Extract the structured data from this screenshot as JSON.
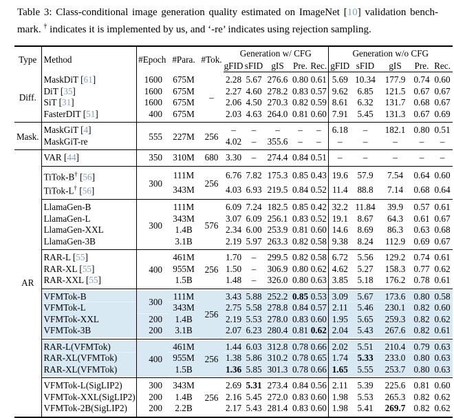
{
  "colors": {
    "highlight": "#d8e9f3",
    "cite": "#7f9ec9"
  },
  "caption": {
    "part1": "Table 3: Class-conditional image generation quality estimated on ImageNet [",
    "cite": "10",
    "part2": "] validation bench-",
    "part3": "mark. ",
    "dagger": "†",
    "part4": " indicates it is implemented by us, and ‘-re’ indicates using rejection sampling."
  },
  "table": {
    "symbols": {
      "dagger": "†"
    },
    "header": {
      "type": "Type",
      "method": "Method",
      "epoch": "#Epoch",
      "para": "#Para.",
      "tok": "#Tok.",
      "cfg_group": "Generation w/ CFG",
      "nocfg_group": "Generation w/o CFG",
      "metrics": [
        "gFID",
        "sFID",
        "gIS",
        "Pre.",
        "Rec."
      ]
    },
    "groups": [
      {
        "type": "Diff.",
        "rows": [
          {
            "method": {
              "name": "MaskDiT",
              "cite": "61"
            },
            "epoch": "1600",
            "para": "675M",
            "tok": {
              "v": "–",
              "span": 4
            },
            "cfg": [
              "2.28",
              "5.67",
              "276.6",
              "0.80",
              "0.61"
            ],
            "nocfg": [
              "5.69",
              "10.34",
              "177.9",
              "0.74",
              "0.60"
            ]
          },
          {
            "method": {
              "name": "DiT",
              "cite": "35"
            },
            "epoch": "1600",
            "para": "675M",
            "cfg": [
              "2.27",
              "4.60",
              "278.2",
              "0.83",
              "0.57"
            ],
            "nocfg": [
              "9.62",
              "6.85",
              "121.5",
              "0.67",
              "0.67"
            ]
          },
          {
            "method": {
              "name": "SiT",
              "cite": "31"
            },
            "epoch": "1600",
            "para": "675M",
            "cfg": [
              "2.06",
              "4.50",
              "270.3",
              "0.82",
              "0.59"
            ],
            "nocfg": [
              "8.61",
              "6.32",
              "131.7",
              "0.68",
              "0.67"
            ]
          },
          {
            "method": {
              "name": "FasterDIT",
              "cite": "51"
            },
            "epoch": "400",
            "para": "675M",
            "cfg": [
              "2.03",
              "4.63",
              "264.0",
              "0.81",
              "0.60"
            ],
            "nocfg": [
              "7.91",
              "5.45",
              "131.3",
              "0.67",
              "0.69"
            ]
          }
        ]
      },
      {
        "type": "Mask.",
        "rows": [
          {
            "method": {
              "name": "MaskGiT",
              "cite": "4"
            },
            "epoch": {
              "v": "555",
              "span": 2
            },
            "para": {
              "v": "227M",
              "span": 2
            },
            "tok": {
              "v": "256",
              "span": 2
            },
            "cfg": [
              "–",
              "–",
              "–",
              "–",
              "–"
            ],
            "nocfg": [
              "6.18",
              "–",
              "182.1",
              "0.80",
              "0.51"
            ]
          },
          {
            "method": {
              "name": "MaskGiT-re"
            },
            "cfg": [
              "4.02",
              "–",
              "355.6",
              "–",
              "–"
            ],
            "nocfg": [
              "–",
              "–",
              "–",
              "–",
              "–"
            ]
          }
        ]
      },
      {
        "type": "AR",
        "rows": [
          {
            "method": {
              "name": "VAR",
              "cite": "44"
            },
            "epoch": "350",
            "para": "310M",
            "tok": "680",
            "cfg": [
              "3.30",
              "–",
              "274.4",
              "0.84",
              "0.51"
            ],
            "nocfg": [
              "–",
              "–",
              "–",
              "–",
              "–"
            ]
          }
        ]
      },
      {
        "rows": [
          {
            "method": {
              "name": "TiTok-B",
              "dagger": true,
              "cite": "56"
            },
            "epoch": {
              "v": "300",
              "span": 2
            },
            "para": "111M",
            "tok": {
              "v": "256",
              "span": 2
            },
            "cfg": [
              "6.76",
              "7.82",
              "175.3",
              "0.85",
              "0.43"
            ],
            "nocfg": [
              "19.6",
              "57.9",
              "7.54",
              "0.64",
              "0.60"
            ]
          },
          {
            "method": {
              "name": "TiTok-L",
              "dagger": true,
              "cite": "56"
            },
            "para": "343M",
            "cfg": [
              "4.03",
              "6.93",
              "219.5",
              "0.84",
              "0.52"
            ],
            "nocfg": [
              "11.4",
              "88.8",
              "7.14",
              "0.68",
              "0.64"
            ]
          }
        ]
      },
      {
        "rows": [
          {
            "method": {
              "name": "LlamaGen-B"
            },
            "epoch": {
              "v": "300",
              "span": 4
            },
            "para": "111M",
            "tok": {
              "v": "576",
              "span": 4
            },
            "cfg": [
              "6.09",
              "7.24",
              "182.5",
              "0.85",
              "0.42"
            ],
            "nocfg": [
              "32.2",
              "11.84",
              "39.9",
              "0.57",
              "0.61"
            ]
          },
          {
            "method": {
              "name": "LlamaGen-L"
            },
            "para": "343M",
            "cfg": [
              "3.07",
              "6.09",
              "256.1",
              "0.83",
              "0.52"
            ],
            "nocfg": [
              "19.1",
              "8.67",
              "64.3",
              "0.61",
              "0.67"
            ]
          },
          {
            "method": {
              "name": "LlamaGen-XXL"
            },
            "para": "1.4B",
            "cfg": [
              "2.34",
              "6.00",
              "253.9",
              "0.81",
              "0.60"
            ],
            "nocfg": [
              "14.6",
              "8.69",
              "86.3",
              "0.63",
              "0.68"
            ]
          },
          {
            "method": {
              "name": "LlamaGen-3B"
            },
            "para": "3.1B",
            "cfg": [
              "2.19",
              "5.97",
              "263.3",
              "0.82",
              "0.58"
            ],
            "nocfg": [
              "9.38",
              "8.24",
              "112.9",
              "0.69",
              "0.67"
            ]
          }
        ]
      },
      {
        "rows": [
          {
            "method": {
              "name": "RAR-L",
              "cite": "55"
            },
            "epoch": {
              "v": "400",
              "span": 3
            },
            "para": "461M",
            "tok": {
              "v": "256",
              "span": 3
            },
            "cfg": [
              "1.70",
              "–",
              "299.5",
              "0.82",
              "0.58"
            ],
            "nocfg": [
              "6.72",
              "5.56",
              "129.2",
              "0.74",
              "0.61"
            ]
          },
          {
            "method": {
              "name": "RAR-XL",
              "cite": "55"
            },
            "para": "955M",
            "cfg": [
              "1.50",
              "–",
              "306.9",
              "0.80",
              "0.62"
            ],
            "nocfg": [
              "4.62",
              "5.27",
              "158.3",
              "0.77",
              "0.62"
            ]
          },
          {
            "method": {
              "name": "RAR-XXL",
              "cite": "55"
            },
            "para": "1.5B",
            "cfg": [
              "1.48",
              "–",
              "326.0",
              "0.80",
              "0.63"
            ],
            "nocfg": [
              "3.85",
              "5.18",
              "176.2",
              "0.78",
              "0.61"
            ]
          }
        ]
      },
      {
        "highlight": true,
        "rows": [
          {
            "method": {
              "name": "VFMTok-B"
            },
            "epoch": {
              "v": "300",
              "span": 2
            },
            "para": "111M",
            "tok": {
              "v": "256",
              "span": 4
            },
            "cfg": [
              "3.43",
              "5.88",
              "252.2",
              "*0.85",
              "0.53"
            ],
            "nocfg": [
              "3.09",
              "5.67",
              "173.6",
              "0.80",
              "0.58"
            ]
          },
          {
            "method": {
              "name": "VFMTok-L"
            },
            "para": "343M",
            "cfg": [
              "2.75",
              "5.58",
              "278.8",
              "0.84",
              "0.57"
            ],
            "nocfg": [
              "2.11",
              "5.46",
              "230.1",
              "0.82",
              "0.60"
            ]
          },
          {
            "method": {
              "name": "VFMTok-XXL"
            },
            "epoch": "200",
            "para": "1.4B",
            "cfg": [
              "2.19",
              "5.53",
              "278.0",
              "0.83",
              "0.60"
            ],
            "nocfg": [
              "1.95",
              "5.65",
              "259.3",
              "0.82",
              "0.62"
            ]
          },
          {
            "method": {
              "name": "VFMTok-3B"
            },
            "epoch": "200",
            "para": "3.1B",
            "cfg": [
              "2.07",
              "6.23",
              "280.4",
              "0.81",
              "*0.62"
            ],
            "nocfg": [
              "2.04",
              "5.43",
              "267.6",
              "0.82",
              "0.61"
            ]
          }
        ]
      },
      {
        "highlight": true,
        "rows": [
          {
            "method": {
              "name": "RAR-L(VFMTok)"
            },
            "epoch": {
              "v": "400",
              "span": 3
            },
            "para": "461M",
            "tok": {
              "v": "256",
              "span": 3
            },
            "cfg": [
              "1.44",
              "6.03",
              "312.8",
              "0.78",
              "0.66"
            ],
            "nocfg": [
              "2.02",
              "5.51",
              "210.4",
              "0.79",
              "0.63"
            ]
          },
          {
            "method": {
              "name": "RAR-XL(VFMTok)"
            },
            "para": "955M",
            "cfg": [
              "1.38",
              "5.86",
              "310.2",
              "0.78",
              "0.65"
            ],
            "nocfg": [
              "1.74",
              "*5.33",
              "233.0",
              "0.80",
              "0.63"
            ]
          },
          {
            "method": {
              "name": "RAR-XL(VFMTok)"
            },
            "para": "1.5B",
            "cfg": [
              "*1.36",
              "5.85",
              "301.3",
              "0.78",
              "0.66"
            ],
            "nocfg": [
              "*1.65",
              "5.55",
              "253.7",
              "0.80",
              "0.63"
            ]
          }
        ]
      },
      {
        "rows": [
          {
            "method": {
              "name": "VFMTok-L(SigLIP2)"
            },
            "epoch": "300",
            "para": "343M",
            "tok": {
              "v": "256",
              "span": 3
            },
            "cfg": [
              "2.69",
              "*5.31",
              "273.4",
              "0.84",
              "0.56"
            ],
            "nocfg": [
              "2.11",
              "5.39",
              "225.6",
              "0.81",
              "0.60"
            ]
          },
          {
            "method": {
              "name": "VFMTok-XXL(SigLIP2)"
            },
            "epoch": "200",
            "para": "1.4B",
            "cfg": [
              "2.16",
              "5.45",
              "272.0",
              "0.83",
              "0.60"
            ],
            "nocfg": [
              "1.98",
              "5.53",
              "265.3",
              "0.82",
              "0.62"
            ]
          },
          {
            "method": {
              "name": "VFMTok-2B(SigLIP2)"
            },
            "epoch": "200",
            "para": "2.2B",
            "cfg": [
              "2.17",
              "5.43",
              "281.4",
              "0.83",
              "0.60"
            ],
            "nocfg": [
              "1.98",
              "5.41",
              "*269.7",
              "0.82",
              "0.62"
            ]
          }
        ]
      }
    ]
  }
}
